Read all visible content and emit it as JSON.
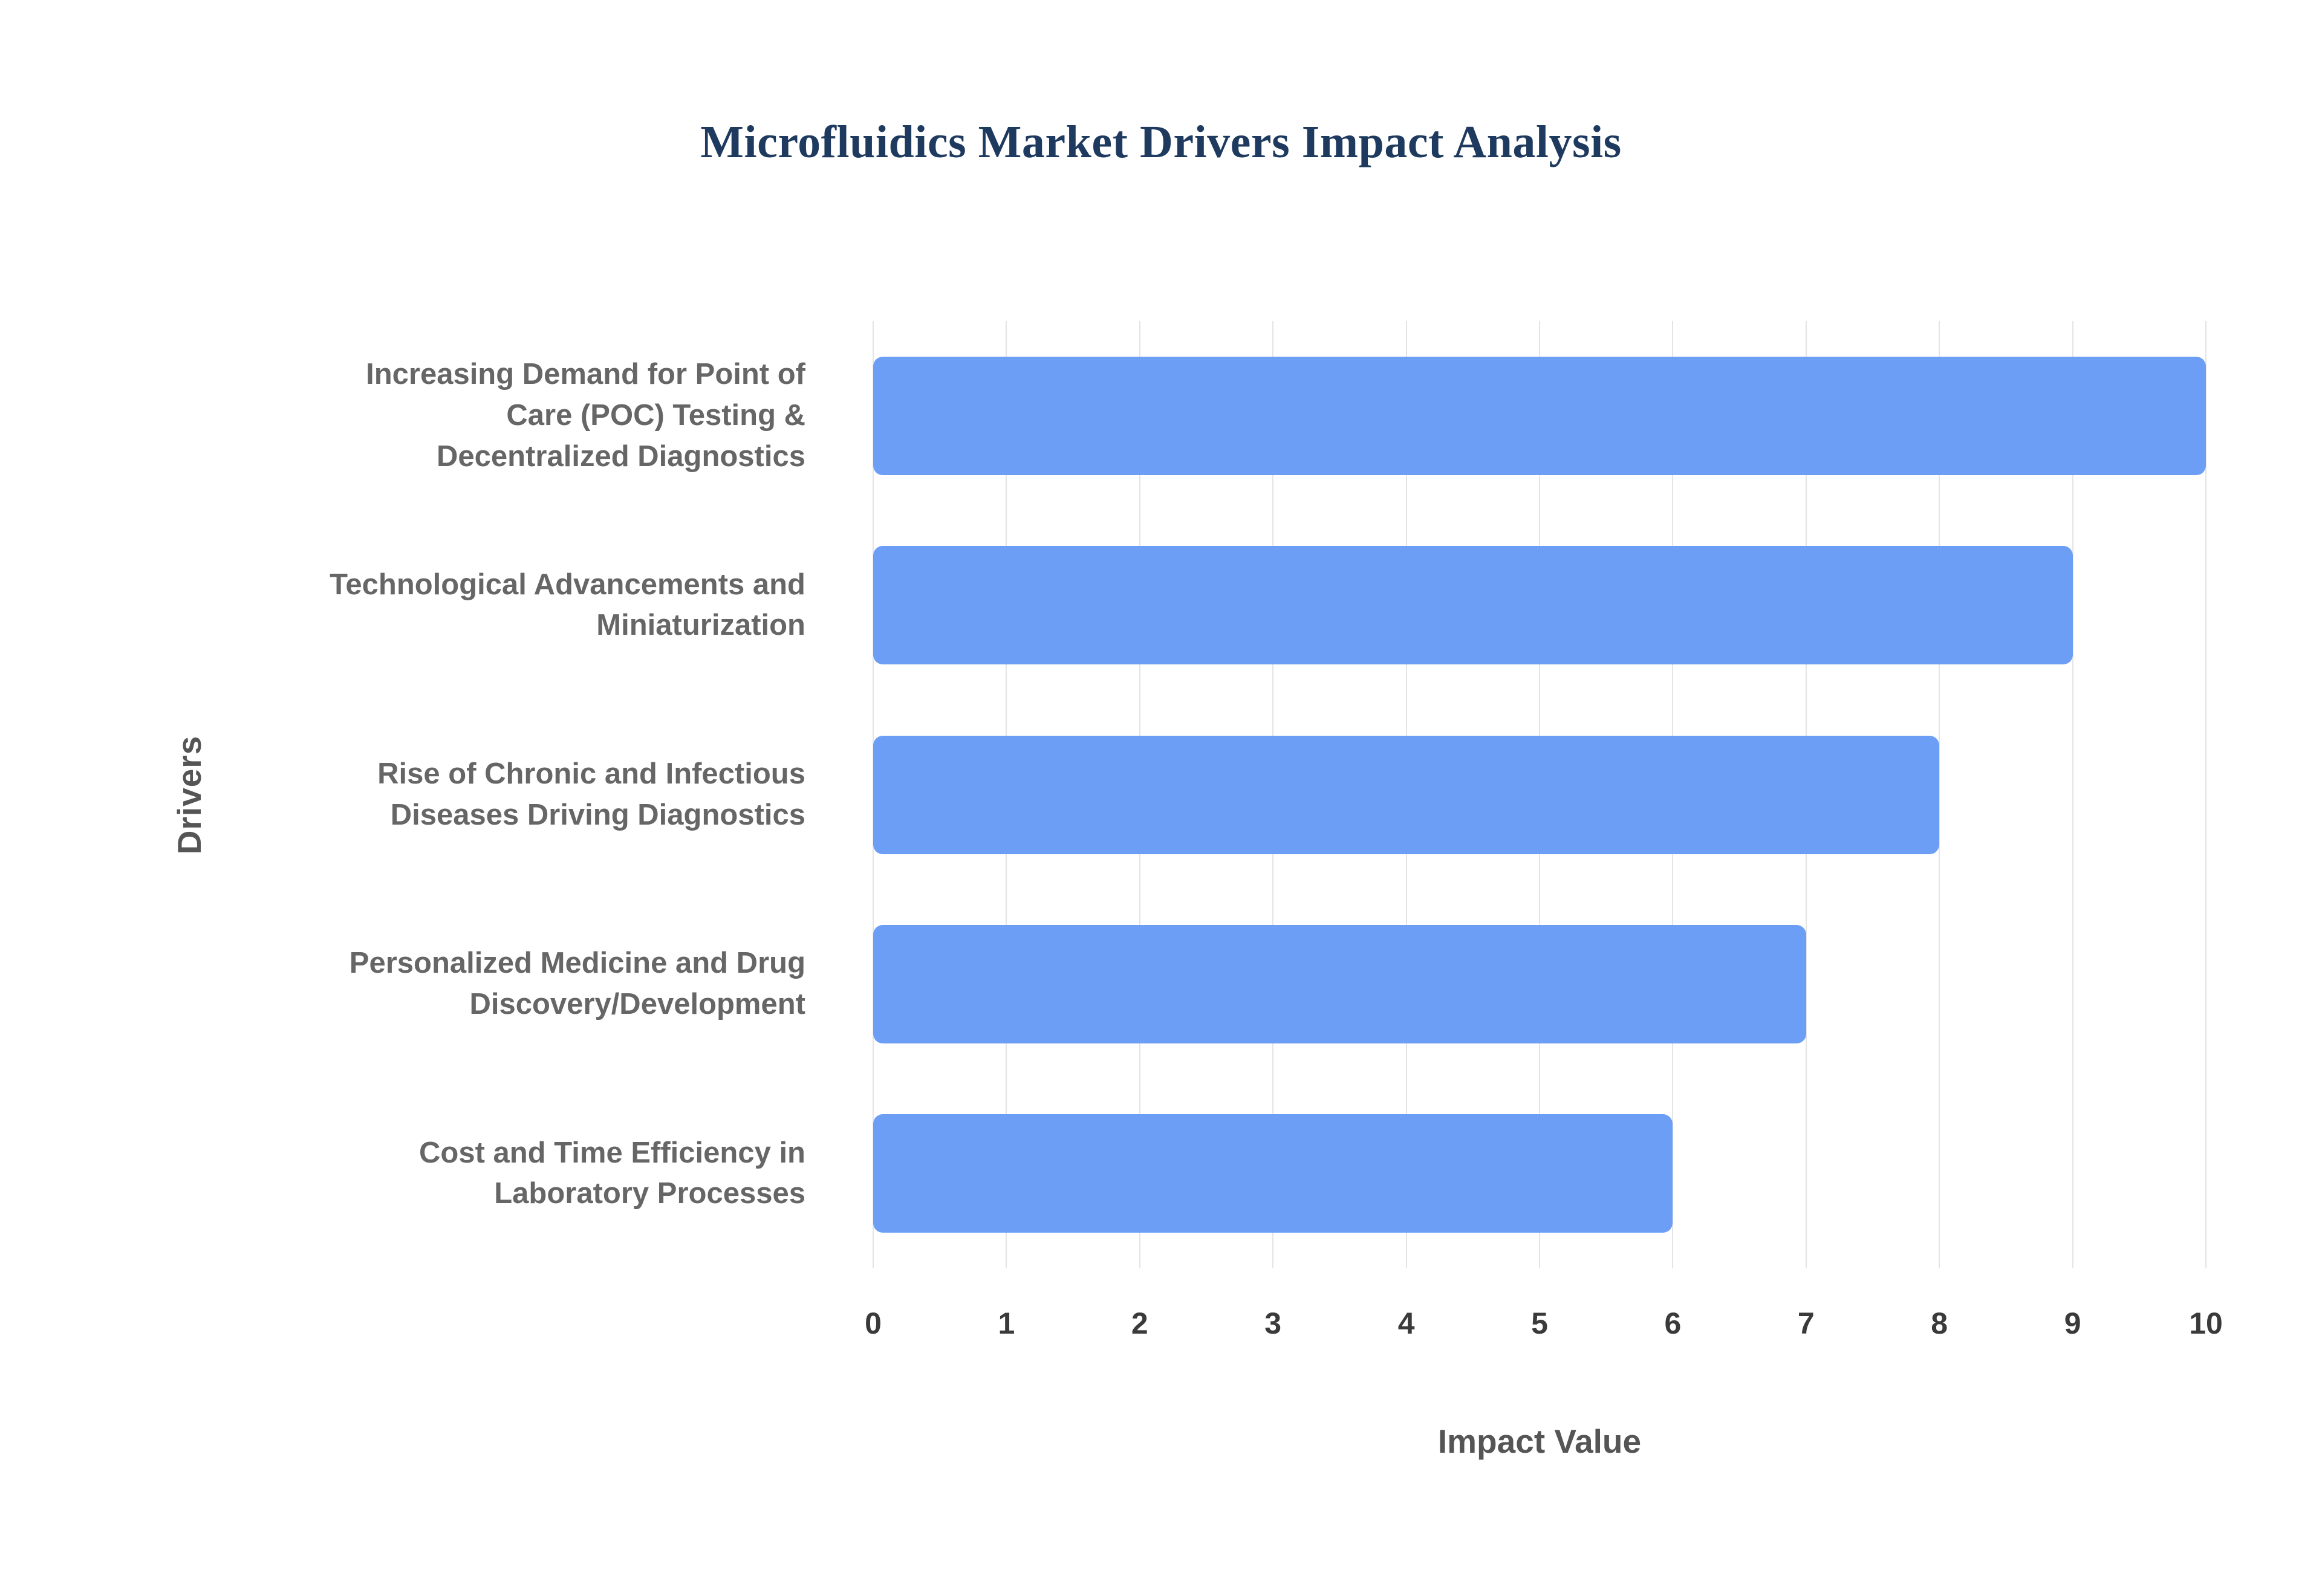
{
  "chart": {
    "title": "Microfluidics Market Drivers Impact Analysis",
    "xlabel": "Impact Value",
    "ylabel": "Drivers"
  },
  "chart_data": {
    "type": "bar",
    "orientation": "horizontal",
    "title": "Microfluidics Market Drivers Impact Analysis",
    "xlabel": "Impact Value",
    "ylabel": "Drivers",
    "categories": [
      "Increasing Demand for Point of Care (POC) Testing & Decentralized Diagnostics",
      "Technological Advancements and Miniaturization",
      "Rise of Chronic and Infectious Diseases Driving Diagnostics",
      "Personalized Medicine and Drug Discovery/Development",
      "Cost and Time Efficiency in Laboratory Processes"
    ],
    "values": [
      10,
      9,
      8,
      7,
      6
    ],
    "xlim": [
      0,
      10
    ],
    "xticks": [
      0,
      1,
      2,
      3,
      4,
      5,
      6,
      7,
      8,
      9,
      10
    ],
    "grid": true,
    "legend": "none",
    "bar_color": "#6c9ef5"
  },
  "colors": {
    "bar": "#6c9ef5",
    "title": "#1f3a5f",
    "category_label": "#666666",
    "tick_label": "#3a3a3a",
    "axis_title": "#555555",
    "gridline": "#e4e4e4",
    "background": "#ffffff"
  }
}
